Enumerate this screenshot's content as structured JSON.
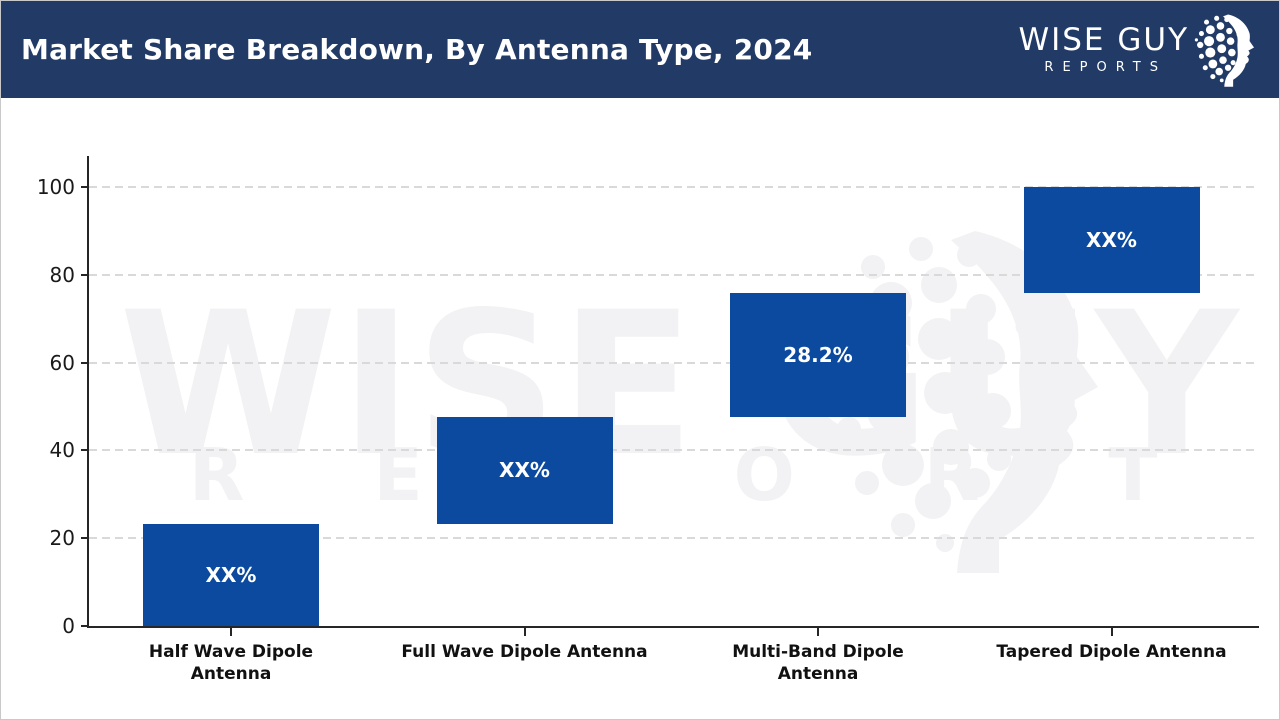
{
  "header": {
    "title": "Market Share Breakdown, By Antenna Type, 2024",
    "bg_color": "#213a66",
    "logo": {
      "word": "WISE GUY",
      "sub": "REPORTS"
    }
  },
  "watermark": {
    "line1": "WISE GUY",
    "line2": "R E P O R T S"
  },
  "chart_data": {
    "type": "bar",
    "subtype": "floating-waterfall",
    "title": "Market Share Breakdown, By Antenna Type, 2024",
    "categories": [
      "Half Wave Dipole Antenna",
      "Full Wave Dipole Antenna",
      "Multi-Band Dipole Antenna",
      "Tapered Dipole Antenna"
    ],
    "bars": [
      {
        "category": "Half Wave Dipole Antenna",
        "start": 0,
        "end": 23.3,
        "label": "XX%"
      },
      {
        "category": "Full Wave Dipole Antenna",
        "start": 23.3,
        "end": 47.6,
        "label": "XX%"
      },
      {
        "category": "Multi-Band Dipole Antenna",
        "start": 47.6,
        "end": 75.8,
        "label": "28.2%"
      },
      {
        "category": "Tapered Dipole Antenna",
        "start": 75.8,
        "end": 100,
        "label": "XX%"
      }
    ],
    "ylim": [
      0,
      100
    ],
    "yticks": [
      0,
      20,
      40,
      60,
      80,
      100
    ],
    "grid": true,
    "legend": "none",
    "bar_color": "#0b4a9e",
    "bar_label_color": "#ffffff",
    "grid_color": "#d9d9d9",
    "axis_color": "#262626"
  }
}
